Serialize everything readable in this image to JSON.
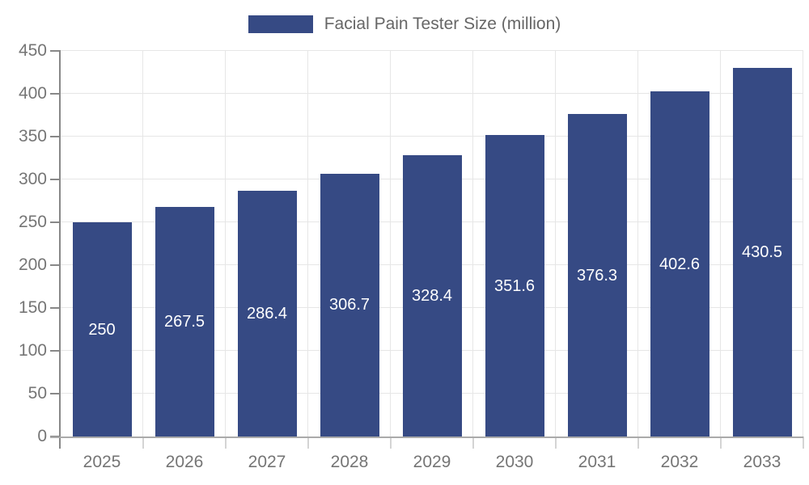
{
  "chart_data": {
    "type": "bar",
    "title": "Facial Pain Tester Size (million)",
    "legend": [
      "Facial Pain Tester Size (million)"
    ],
    "legend_position": "top-center",
    "categories": [
      "2025",
      "2026",
      "2027",
      "2028",
      "2029",
      "2030",
      "2031",
      "2032",
      "2033"
    ],
    "series": [
      {
        "name": "Facial Pain Tester Size (million)",
        "values": [
          250,
          267.5,
          286.4,
          306.7,
          328.4,
          351.6,
          376.3,
          402.6,
          430.5
        ]
      }
    ],
    "value_labels": [
      "250",
      "267.5",
      "286.4",
      "306.7",
      "328.4",
      "351.6",
      "376.3",
      "402.6",
      "430.5"
    ],
    "xlabel": "",
    "ylabel": "",
    "ylim": [
      0,
      450
    ],
    "yticks": [
      0,
      50,
      100,
      150,
      200,
      250,
      300,
      350,
      400,
      450
    ],
    "grid": true,
    "colors": {
      "bar": "#364a84",
      "grid": "#e6e6e6",
      "y_axis": "#888888",
      "x_axis": "#aaaaaa",
      "x_tick": "#d4d4d4",
      "tick_label": "#757575",
      "legend_text": "#666666",
      "value_label": "#ffffff",
      "background": "#ffffff"
    }
  }
}
